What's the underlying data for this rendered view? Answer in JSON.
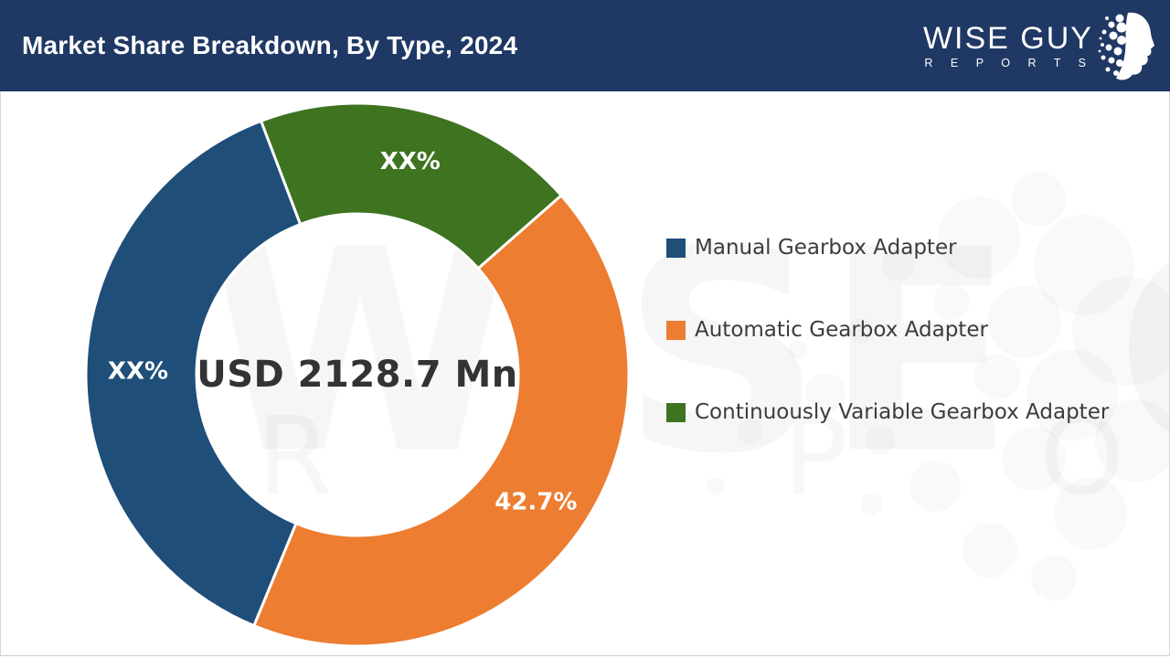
{
  "header": {
    "title": "Market Share Breakdown, By Type, 2024",
    "background_color": "#1F3864",
    "logo": {
      "name": "WISE GUY",
      "tagline": "R E P O R T S"
    }
  },
  "watermark": {
    "line1": "WISE GUY",
    "line2": "R E P O R T S"
  },
  "chart_data": {
    "type": "pie",
    "variant": "donut",
    "title": "Market Share Breakdown, By Type, 2024",
    "center_label": "USD 2128.7 Mn",
    "start_angle_deg": -20.8,
    "legend_position": "right",
    "slices": [
      {
        "name": "Continuously Variable Gearbox Adapter",
        "pct": 19.3,
        "label": "XX%",
        "color": "#3E7320"
      },
      {
        "name": "Automatic Gearbox Adapter",
        "pct": 42.7,
        "label": "42.7%",
        "color": "#ED7D31"
      },
      {
        "name": "Manual Gearbox Adapter",
        "pct": 38.0,
        "label": "XX%",
        "color": "#1F4E79"
      }
    ],
    "legend": [
      {
        "label": "Manual Gearbox Adapter",
        "color": "#1F4E79"
      },
      {
        "label": "Automatic Gearbox Adapter",
        "color": "#ED7D31"
      },
      {
        "label": "Continuously Variable Gearbox Adapter",
        "color": "#3E7320"
      }
    ]
  }
}
